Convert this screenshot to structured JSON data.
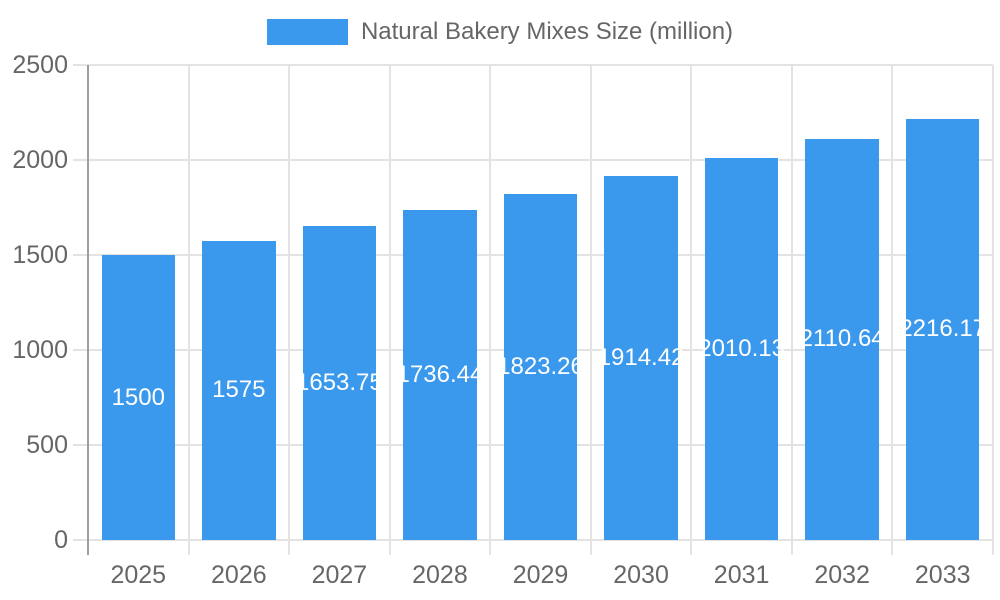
{
  "legend": {
    "label": "Natural Bakery Mixes Size (million)"
  },
  "colors": {
    "bar": "#3a99ec",
    "bar_label_text": "#ffffff",
    "axis_text": "#666666",
    "grid": "#e3e3e3",
    "axis_line": "#9e9e9e"
  },
  "chart_data": {
    "type": "bar",
    "title": "Natural Bakery Mixes Size (million)",
    "series": [
      {
        "name": "Natural Bakery Mixes Size (million)",
        "values": [
          1500,
          1575,
          1653.75,
          1736.44,
          1823.26,
          1914.42,
          2010.13,
          2110.64,
          2216.17
        ]
      }
    ],
    "categories": [
      "2025",
      "2026",
      "2027",
      "2028",
      "2029",
      "2030",
      "2031",
      "2032",
      "2033"
    ],
    "value_labels": [
      "1500",
      "1575",
      "1653.75",
      "1736.44",
      "1823.26",
      "1914.42",
      "2010.13",
      "2110.64",
      "2216.17"
    ],
    "xlabel": "",
    "ylabel": "",
    "ylim": [
      0,
      2500
    ],
    "yticks": [
      0,
      500,
      1000,
      1500,
      2000,
      2500
    ],
    "ytick_labels": [
      "0",
      "500",
      "1000",
      "1500",
      "2000",
      "2500"
    ],
    "grid": true,
    "legend_position": "top"
  }
}
